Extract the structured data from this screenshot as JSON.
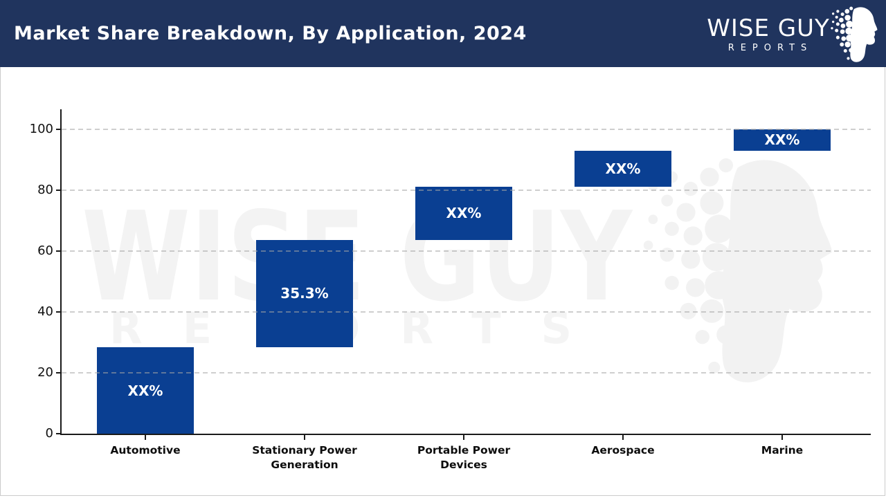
{
  "header": {
    "title": "Market Share Breakdown, By Application, 2024",
    "logo": {
      "line1": "WISE GUY",
      "line2": "REPORTS"
    }
  },
  "watermark": {
    "line1": "WISE GUY",
    "line2": "REPORTS"
  },
  "chart_data": {
    "type": "bar",
    "subtype": "waterfall",
    "title": "Market Share Breakdown, By Application, 2024",
    "categories": [
      "Automotive",
      "Stationary Power\nGeneration",
      "Portable Power\nDevices",
      "Aerospace",
      "Marine"
    ],
    "values": [
      28.4,
      35.3,
      17.5,
      11.8,
      7.0
    ],
    "cumulative_start": [
      0,
      28.4,
      63.7,
      81.2,
      93.0
    ],
    "bar_labels": [
      "XX%",
      "35.3%",
      "XX%",
      "XX%",
      "XX%"
    ],
    "ylabel": "",
    "xlabel": "",
    "ylim": [
      0,
      105
    ],
    "yticks": [
      0,
      20,
      40,
      60,
      80,
      100
    ],
    "grid": "horizontal-dashed-over-bars",
    "legend": "none",
    "bar_color": "#0a3f92",
    "bar_label_color": "#ffffff",
    "header_color": "#20345e",
    "gridline_color": "#cfcfcf",
    "axis_color": "#1a1a1a"
  }
}
